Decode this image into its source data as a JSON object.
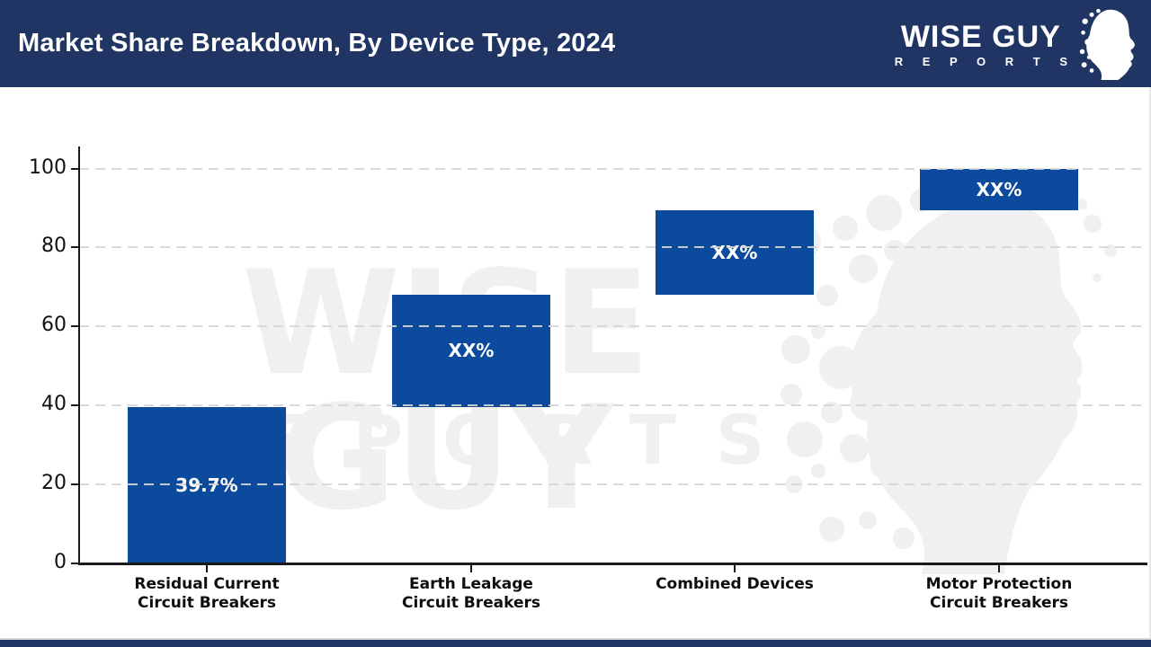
{
  "header": {
    "title": "Market Share Breakdown, By Device Type, 2024",
    "logo": {
      "brand_top": "WISE GUY",
      "brand_bottom": "R E P O R T S"
    }
  },
  "watermark": {
    "line1": "WISE GUY",
    "line2": "REPORTS"
  },
  "chart_data": {
    "type": "bar",
    "subtype": "floating-waterfall-segments",
    "title": "Market Share Breakdown, By Device Type, 2024",
    "categories": [
      [
        "Residual Current",
        "Circuit Breakers"
      ],
      [
        "Earth Leakage",
        "Circuit Breakers"
      ],
      [
        "Combined Devices"
      ],
      [
        "Motor Protection",
        "Circuit Breakers"
      ]
    ],
    "bars": [
      {
        "start": 0,
        "end": 39.7,
        "label": "39.7%"
      },
      {
        "start": 39.7,
        "end": 68,
        "label": "XX%"
      },
      {
        "start": 68,
        "end": 89.4,
        "label": "XX%"
      },
      {
        "start": 89.4,
        "end": 100,
        "label": "XX%"
      }
    ],
    "ylim": [
      0,
      100
    ],
    "yticks": [
      0,
      20,
      40,
      60,
      80,
      100
    ],
    "xlabel": "",
    "ylabel": "",
    "grid": "horizontal-dashed",
    "legend": "none"
  },
  "colors": {
    "header_bg": "#203563",
    "footer_bg": "#203563",
    "bar": "#0c4a9d",
    "grid": "#d9d9d9",
    "watermark": "#f0f0f2",
    "axis": "#1a1a1a"
  }
}
